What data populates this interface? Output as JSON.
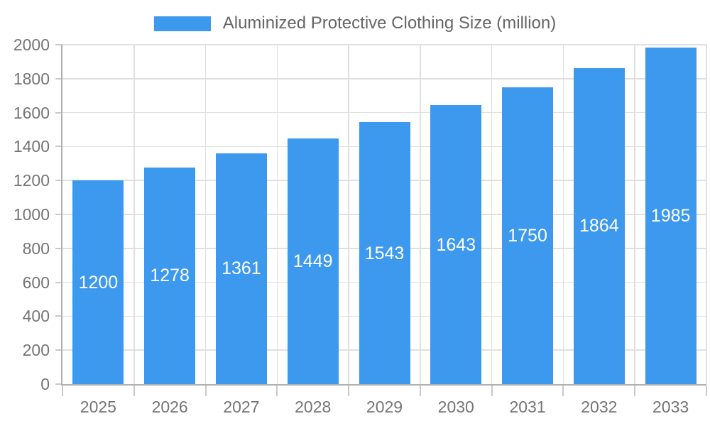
{
  "chart_data": {
    "type": "bar",
    "title": "Aluminized Protective Clothing Size (million)",
    "categories": [
      "2025",
      "2026",
      "2027",
      "2028",
      "2029",
      "2030",
      "2031",
      "2032",
      "2033"
    ],
    "values": [
      1200,
      1278,
      1361,
      1449,
      1543,
      1643,
      1750,
      1864,
      1985
    ],
    "xlabel": "",
    "ylabel": "",
    "ylim": [
      0,
      2000
    ],
    "ytick_step": 200,
    "grid": true,
    "legend_position": "top",
    "value_labels_inside_bars": true,
    "bar_color": "#3C99EE",
    "bar_label_color": "#FFFFFF",
    "axis_text_color": "#757575",
    "legend_text_color": "#666666",
    "grid_color": "#E0E0E0",
    "axis_line_color": "#B0B0B0",
    "tick_color": "#C9C9C9",
    "background_color": "#FFFFFF"
  }
}
